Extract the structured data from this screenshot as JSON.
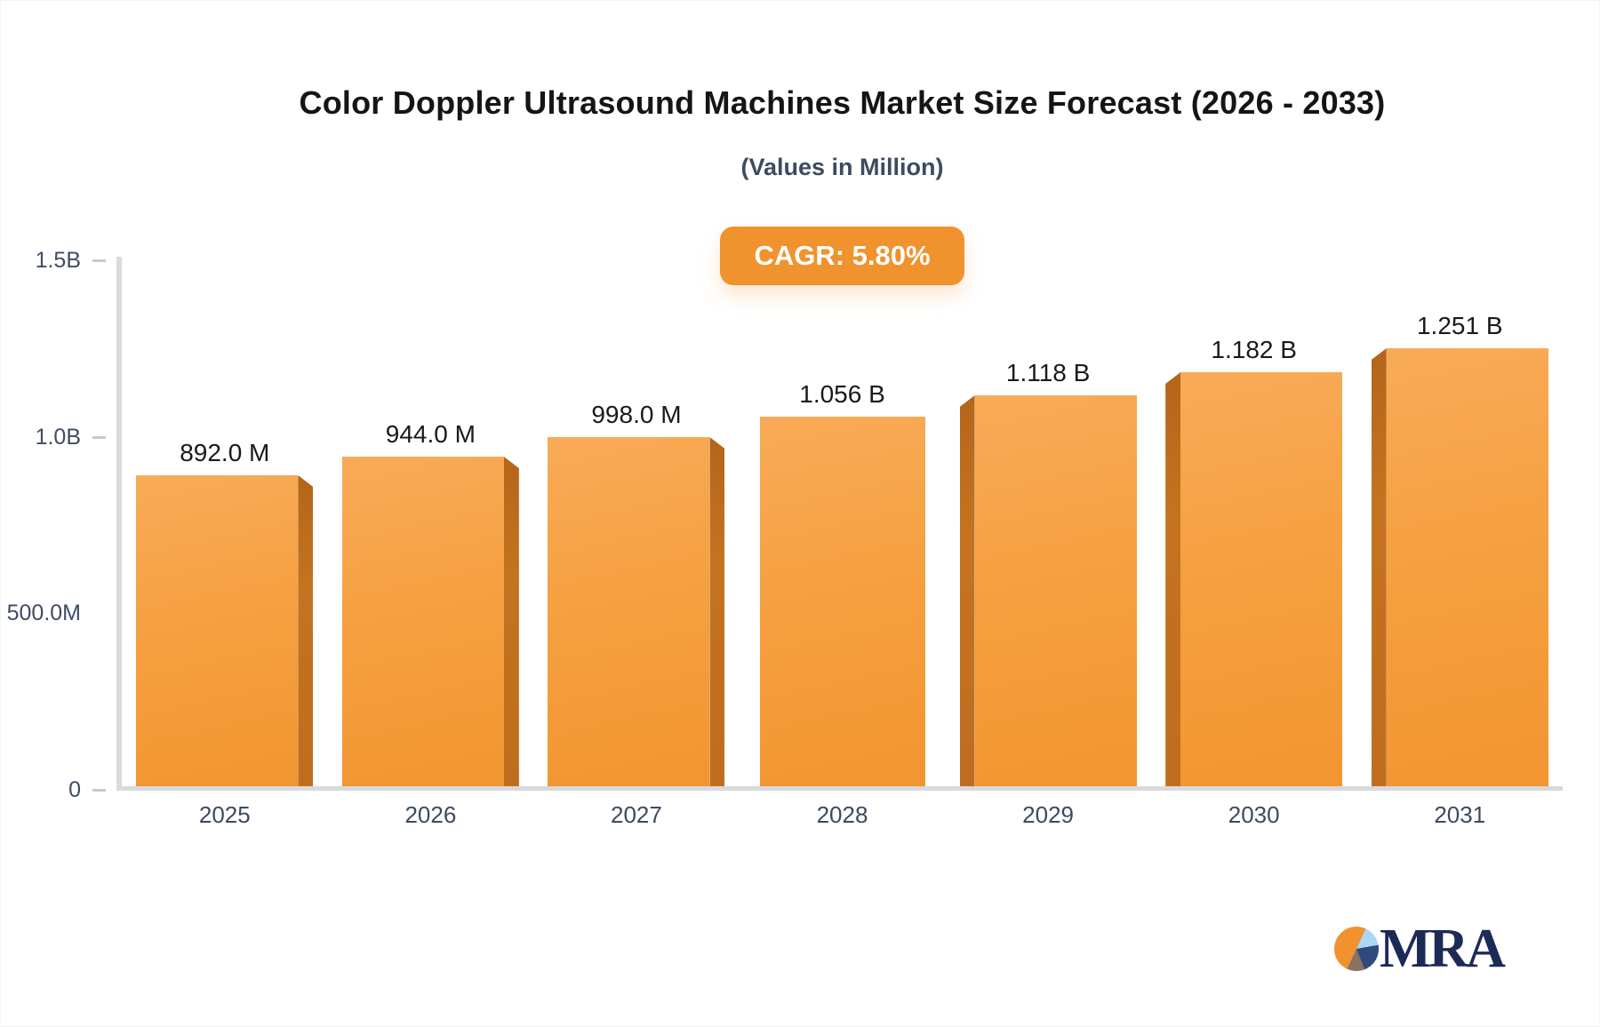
{
  "page": {
    "title": "Color Doppler Ultrasound Machines Market Size Forecast (2026 - 2033)",
    "subtitle": "(Values in Million)",
    "cagr_badge": "CAGR: 5.80%"
  },
  "chart_data": {
    "type": "bar",
    "title": "Color Doppler Ultrasound Machines Market Size Forecast (2026 - 2033)",
    "subtitle": "(Values in Million)",
    "cagr_percent": 5.8,
    "categories": [
      "2025",
      "2026",
      "2027",
      "2028",
      "2029",
      "2030",
      "2031"
    ],
    "values_millions": [
      892.0,
      944.0,
      998.0,
      1056,
      1118,
      1182,
      1251
    ],
    "value_labels": [
      "892.0 M",
      "944.0 M",
      "998.0 M",
      "1.056 B",
      "1.118 B",
      "1.182 B",
      "1.251 B"
    ],
    "ylim_millions": [
      0,
      1500
    ],
    "yticks": [
      {
        "label": "1.5B",
        "value_millions": 1500,
        "tick": true
      },
      {
        "label": "1.0B",
        "value_millions": 1000,
        "tick": true
      },
      {
        "label": "500.0M",
        "value_millions": 500,
        "tick": false
      },
      {
        "label": "0",
        "value_millions": 0,
        "tick": true
      }
    ],
    "grid": false,
    "legend": false,
    "bar_style": "3d-column",
    "colors": {
      "bar_face": "#F59E3C",
      "bar_side": "#BF6C1E",
      "cagr_badge": "#F0922E",
      "axis_line": "#D9D9D9",
      "title_text": "#151515",
      "subtitle_text": "#3D4B61",
      "axis_text": "#3E4C63"
    }
  },
  "logo": {
    "text": "MRA",
    "colors": {
      "text_navy": "#1C2A56",
      "pie_orange": "#F0922D",
      "pie_light_blue": "#A9D7F5",
      "pie_dark_blue": "#2F4B7C",
      "pie_brown": "#8B7164"
    }
  }
}
